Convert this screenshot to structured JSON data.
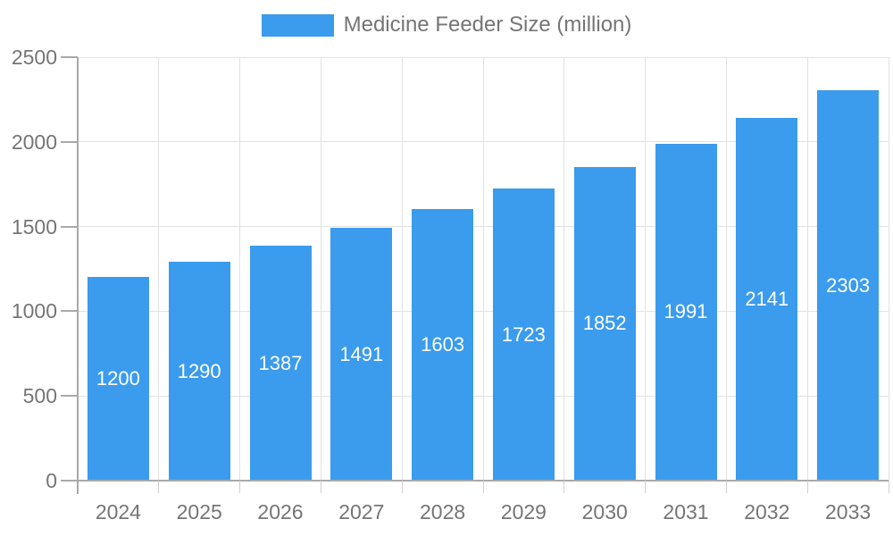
{
  "chart_data": {
    "type": "bar",
    "title": "Medicine Feeder Size (million)",
    "categories": [
      "2024",
      "2025",
      "2026",
      "2027",
      "2028",
      "2029",
      "2030",
      "2031",
      "2032",
      "2033"
    ],
    "series": [
      {
        "name": "Medicine Feeder Size (million)",
        "values": [
          1200,
          1290,
          1387,
          1491,
          1603,
          1723,
          1852,
          1991,
          2141,
          2303
        ]
      }
    ],
    "xlabel": "",
    "ylabel": "",
    "ylim": [
      0,
      2500
    ],
    "yticks": [
      0,
      500,
      1000,
      1500,
      2000,
      2500
    ],
    "grid": true,
    "legend_position": "top-center",
    "value_labels": "inside-bar-centered",
    "colors": {
      "bar": "#3B9BED",
      "grid_line": "#E2E2E2",
      "axis_line": "#A9A9A9",
      "minor_tick": "#D0D0D0",
      "axis_text": "#757575",
      "value_label_text": "#FFFFFF",
      "background": "#FFFFFF"
    }
  }
}
